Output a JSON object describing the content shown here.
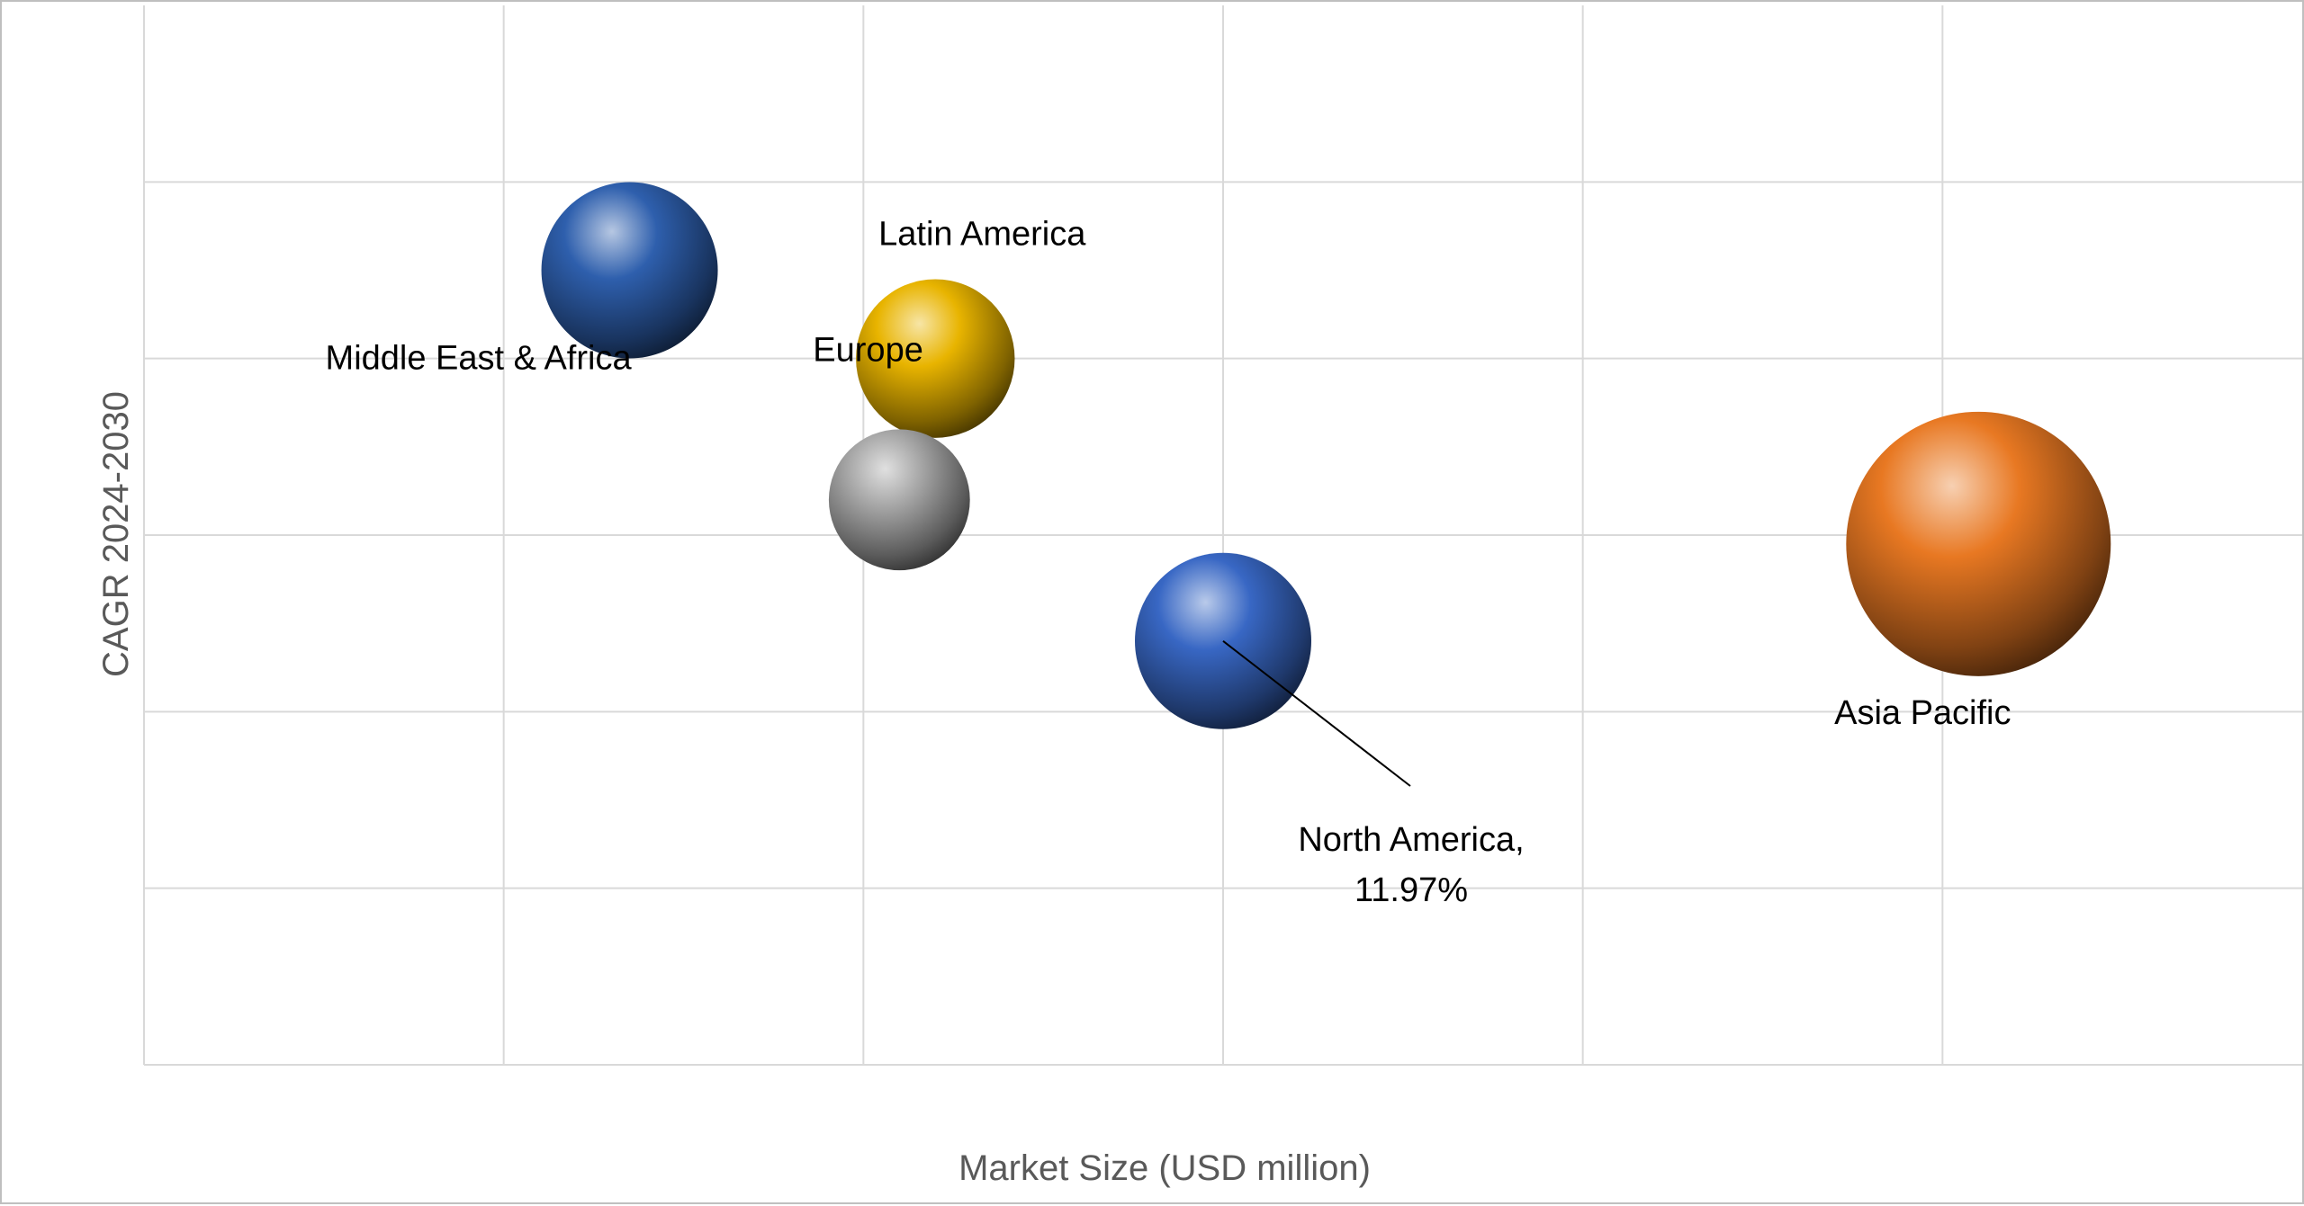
{
  "chart_data": {
    "type": "bubble",
    "title": "",
    "xlabel": "Market Size (USD million)",
    "ylabel": "CAGR 2024-2030",
    "xlim": [
      0,
      6
    ],
    "ylim": [
      0,
      6
    ],
    "grid": true,
    "legend": "none",
    "series": [
      {
        "name": "Middle East & Africa",
        "label": "Middle East & Africa",
        "x": 1.35,
        "y": 4.5,
        "size": 1.0,
        "color": "#2e5fad"
      },
      {
        "name": "Latin America",
        "label": "Latin America",
        "x": 2.2,
        "y": 4.0,
        "size": 0.9,
        "color": "#e8b400"
      },
      {
        "name": "Europe",
        "label": "Europe",
        "x": 2.1,
        "y": 3.2,
        "size": 0.8,
        "color": "#a6a6a6"
      },
      {
        "name": "North America",
        "label": "North America, 11.97%",
        "label_lines": [
          "North America,",
          "11.97%"
        ],
        "x": 3.0,
        "y": 2.4,
        "size": 1.0,
        "color": "#3867c4"
      },
      {
        "name": "Asia Pacific",
        "label": "Asia Pacific",
        "x": 5.1,
        "y": 2.95,
        "size": 1.5,
        "color": "#e87822"
      }
    ]
  }
}
